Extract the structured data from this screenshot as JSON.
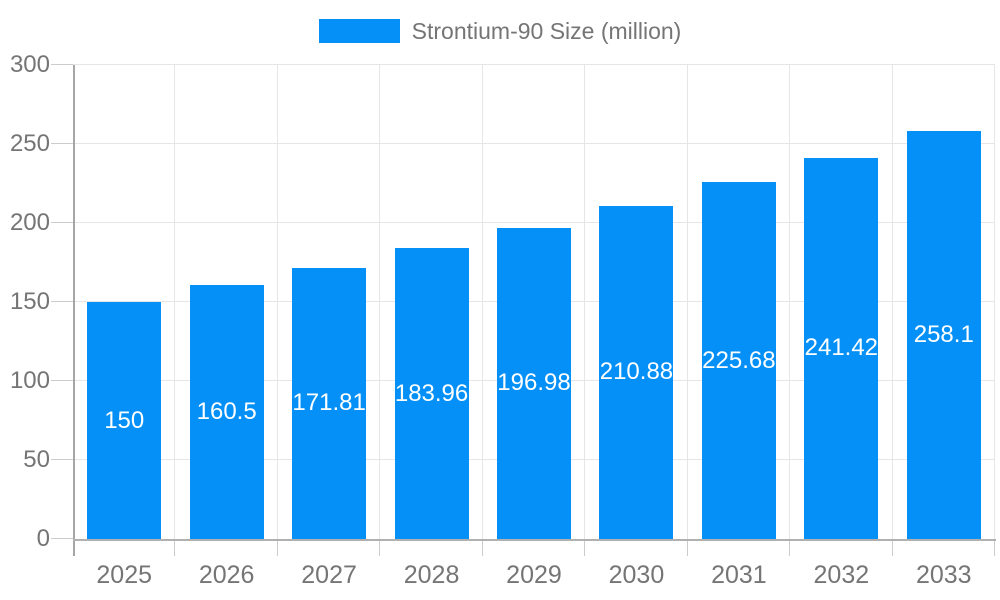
{
  "chart_data": {
    "type": "bar",
    "title": "",
    "legend": {
      "label": "Strontium-90 Size (million)",
      "position": "top"
    },
    "categories": [
      "2025",
      "2026",
      "2027",
      "2028",
      "2029",
      "2030",
      "2031",
      "2032",
      "2033"
    ],
    "series": [
      {
        "name": "Strontium-90 Size (million)",
        "values": [
          150,
          160.5,
          171.81,
          183.96,
          196.98,
          210.88,
          225.68,
          241.42,
          258.1
        ],
        "value_labels": [
          "150",
          "160.5",
          "171.81",
          "183.96",
          "196.98",
          "210.88",
          "225.68",
          "241.42",
          "258.1"
        ]
      }
    ],
    "xlabel": "",
    "ylabel": "",
    "ylim": [
      0,
      300
    ],
    "yticks": [
      0,
      50,
      100,
      150,
      200,
      250,
      300
    ],
    "grid": true,
    "value_labels_inside_bars": true,
    "colors": {
      "bar": "#0590f8",
      "axis_text": "#757575",
      "value_text": "#ffffff",
      "gridline": "#e6e6e6",
      "axis_line": "#b0b0b0",
      "tick_line": "#cccccc",
      "background": "#ffffff"
    }
  }
}
